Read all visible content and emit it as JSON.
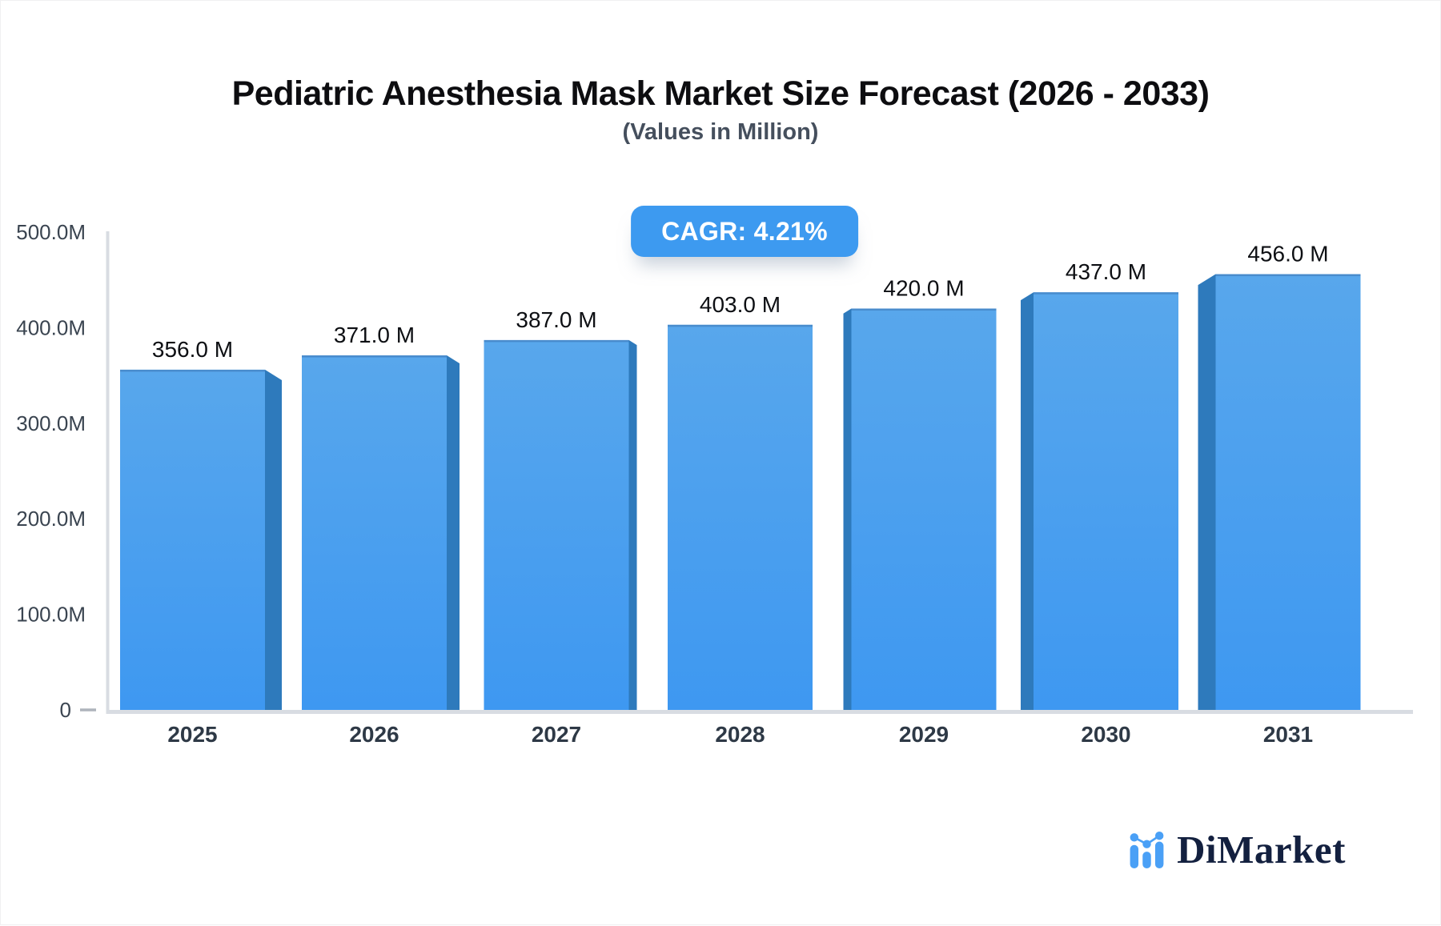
{
  "header": {
    "title": "Pediatric Anesthesia Mask Market Size Forecast (2026 - 2033)",
    "subtitle": "(Values in Million)"
  },
  "badge": {
    "label": "CAGR: 4.21%",
    "bg_color": "#3d9af0",
    "text_color": "#ffffff"
  },
  "chart_data": {
    "type": "bar",
    "style": "3d-perspective-center",
    "title": "Pediatric Anesthesia Mask Market Size Forecast (2026 - 2033)",
    "subtitle": "(Values in Million)",
    "xlabel": "",
    "ylabel": "",
    "unit": "Million",
    "categories": [
      "2025",
      "2026",
      "2027",
      "2028",
      "2029",
      "2030",
      "2031"
    ],
    "values": [
      356.0,
      371.0,
      387.0,
      403.0,
      420.0,
      437.0,
      456.0
    ],
    "value_labels": [
      "356.0 M",
      "371.0 M",
      "387.0 M",
      "403.0 M",
      "420.0 M",
      "437.0 M",
      "456.0 M"
    ],
    "ylim": [
      0,
      500
    ],
    "y_ticks": [
      {
        "label": "500.0M",
        "value": 500
      },
      {
        "label": "400.0M",
        "value": 400
      },
      {
        "label": "300.0M",
        "value": 300
      },
      {
        "label": "200.0M",
        "value": 200
      },
      {
        "label": "100.0M",
        "value": 100
      },
      {
        "label": "0",
        "value": 0
      }
    ],
    "grid": false,
    "legend": null,
    "colors": {
      "bar_face_top": "#58a7ec",
      "bar_face_bottom": "#3e98f1",
      "bar_top_edge": "#4687c8",
      "bar_side_face": "#2e7abc",
      "axis_line": "#d8dce2",
      "tick_mark": "#aeb4bc",
      "y_label": "#3a4450",
      "x_label": "#2e3946",
      "value_label": "#0d0f13"
    }
  },
  "logo": {
    "text": "DiMarket",
    "icon": "mini-bar-line-chart-icon",
    "text_color": "#13203f",
    "icon_color": "#4aa0f6"
  }
}
